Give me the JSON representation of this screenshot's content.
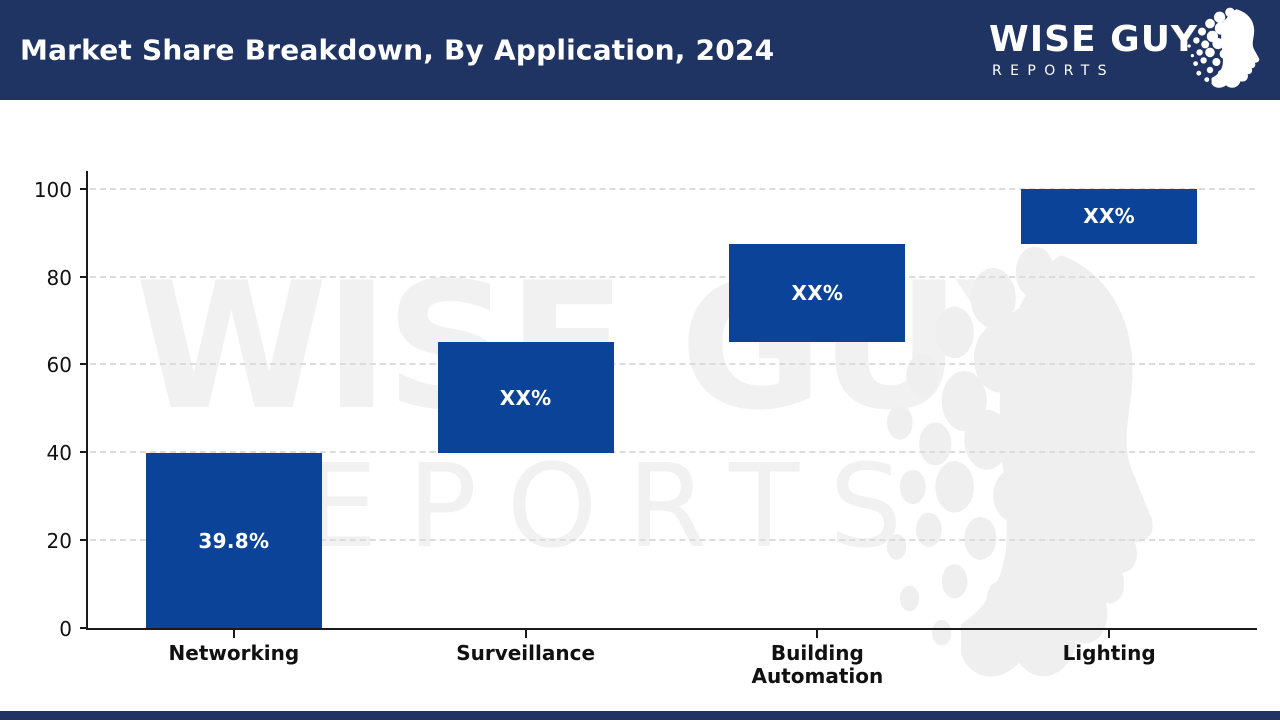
{
  "header": {
    "title": "Market Share Breakdown, By Application, 2024",
    "bg_color": "#203464",
    "logo": {
      "line1": "WISE GUY",
      "line2": "REPORTS"
    }
  },
  "watermark": {
    "line1": "WISE GUY",
    "line2": "REPORTS"
  },
  "footer": {
    "bg_color": "#203464"
  },
  "chart_data": {
    "type": "bar",
    "variant": "floating-segment-waterfall",
    "title": "Market Share Breakdown, By Application, 2024",
    "categories": [
      "Networking",
      "Surveillance",
      "Building Automation",
      "Lighting"
    ],
    "segments": [
      {
        "category": "Networking",
        "start": 0,
        "end": 39.8,
        "label": "39.8%"
      },
      {
        "category": "Surveillance",
        "start": 39.8,
        "end": 65,
        "label": "XX%"
      },
      {
        "category": "Building Automation",
        "start": 65,
        "end": 87.5,
        "label": "XX%"
      },
      {
        "category": "Lighting",
        "start": 87.5,
        "end": 100,
        "label": "XX%"
      }
    ],
    "xlabel": "",
    "ylabel": "",
    "yticks": [
      0,
      20,
      40,
      60,
      80,
      100
    ],
    "ylim": [
      0,
      104
    ],
    "grid": "horizontal-dashed",
    "legend": "none",
    "bar_color": "#0b4399",
    "value_label_color": "#ffffff",
    "axis_color": "#1a1a1a"
  }
}
